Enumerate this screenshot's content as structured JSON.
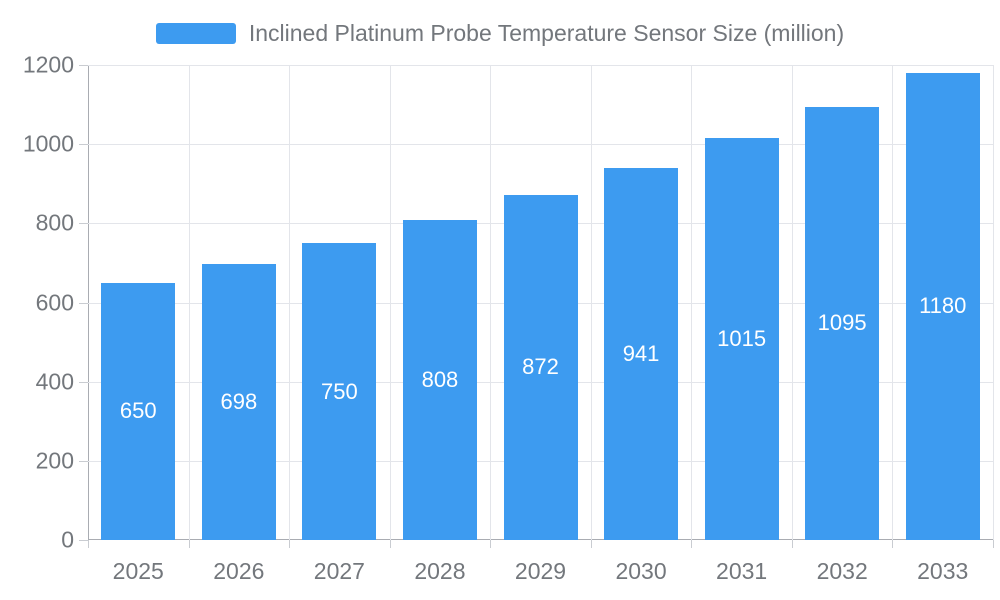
{
  "legend": {
    "label": "Inclined Platinum Probe Temperature Sensor Size (million)"
  },
  "chart_data": {
    "type": "bar",
    "title": "",
    "xlabel": "",
    "ylabel": "",
    "categories": [
      "2025",
      "2026",
      "2027",
      "2028",
      "2029",
      "2030",
      "2031",
      "2032",
      "2033"
    ],
    "series": [
      {
        "name": "Inclined Platinum Probe Temperature Sensor Size (million)",
        "values": [
          650,
          698,
          750,
          808,
          872,
          941,
          1015,
          1095,
          1180
        ]
      }
    ],
    "value_labels_shown": true,
    "y_ticks": [
      0,
      200,
      400,
      600,
      800,
      1000,
      1200
    ],
    "ylim": [
      0,
      1200
    ],
    "grid": true,
    "legend_position": "top-center",
    "colors": {
      "bar": "#3D9BF0",
      "value_label": "#FFFFFF",
      "axis_label": "#73777C",
      "legend_text": "#73777C",
      "gridline": "#E3E5EA",
      "axis_line": "#A9ACB2",
      "background": "#FFFFFF"
    }
  }
}
